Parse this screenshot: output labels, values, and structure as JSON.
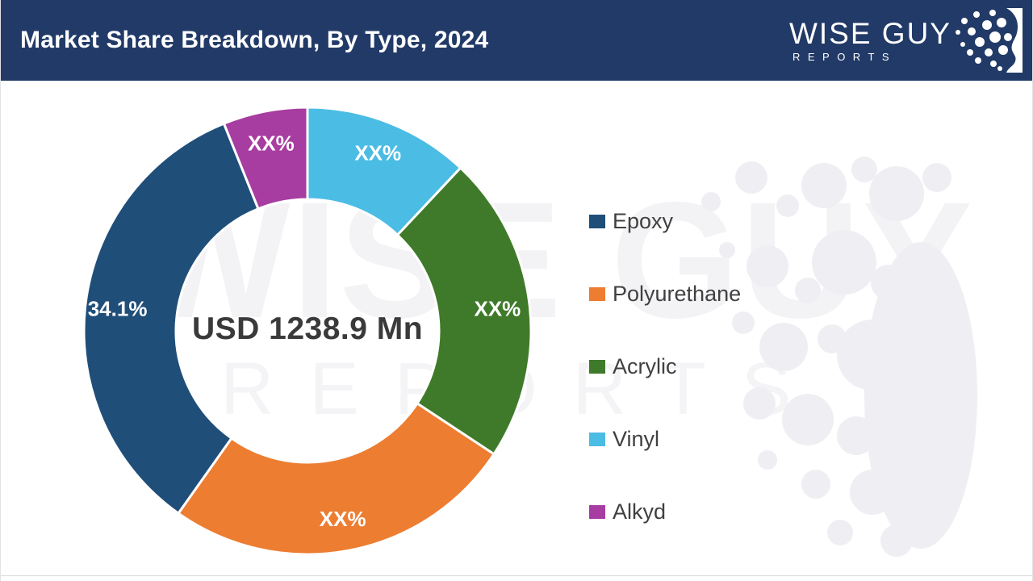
{
  "header": {
    "title": "Market Share Breakdown, By Type, 2024",
    "bg_color": "#223A67",
    "logo": {
      "line1": "WISE GUY",
      "line2": "REPORTS"
    }
  },
  "watermark": {
    "line1": "WISE GUY",
    "line2": "REPORTS"
  },
  "chart_data": {
    "type": "pie",
    "subtype": "donut",
    "title": "Market Share Breakdown, By Type, 2024",
    "center_label": "USD 1238.9 Mn",
    "legend_position": "right",
    "series": [
      {
        "name": "Epoxy",
        "value": 34.1,
        "display_label": "34.1%",
        "color": "#1F4E79"
      },
      {
        "name": "Polyurethane",
        "value": 25.5,
        "display_label": "XX%",
        "color": "#ED7D31"
      },
      {
        "name": "Acrylic",
        "value": 22.3,
        "display_label": "XX%",
        "color": "#3F7A2A"
      },
      {
        "name": "Vinyl",
        "value": 12.0,
        "display_label": "XX%",
        "color": "#4BBCE4"
      },
      {
        "name": "Alkyd",
        "value": 6.1,
        "display_label": "XX%",
        "color": "#A73DA0"
      }
    ],
    "clockwise_order_from_top": [
      "Vinyl",
      "Acrylic",
      "Polyurethane",
      "Epoxy",
      "Alkyd"
    ]
  }
}
